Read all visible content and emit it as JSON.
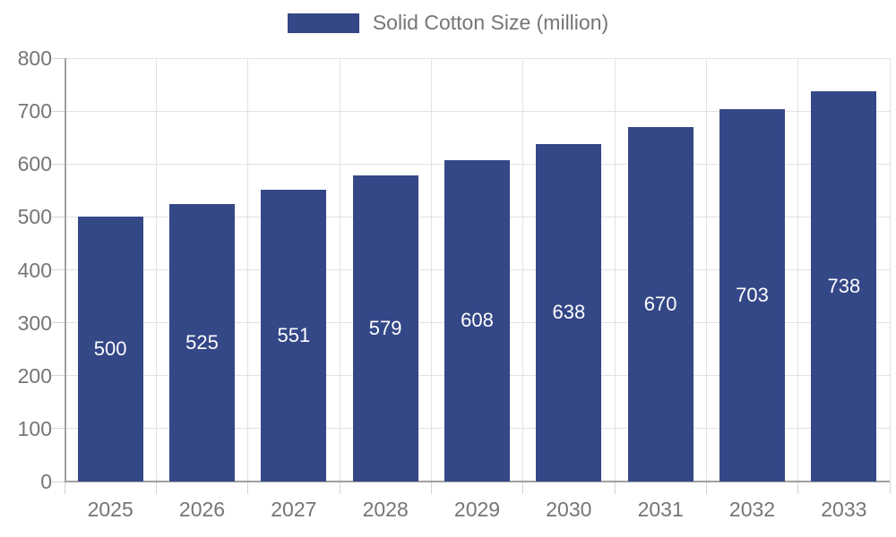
{
  "chart_data": {
    "type": "bar",
    "title": "",
    "xlabel": "",
    "ylabel": "",
    "categories": [
      "2025",
      "2026",
      "2027",
      "2028",
      "2029",
      "2030",
      "2031",
      "2032",
      "2033"
    ],
    "series": [
      {
        "name": "Solid Cotton Size (million)",
        "color": "#344787",
        "values": [
          500,
          525,
          551,
          579,
          608,
          638,
          670,
          703,
          738
        ]
      }
    ],
    "ylim": [
      0,
      800
    ],
    "ytick_step": 100,
    "grid": true,
    "legend_position": "top",
    "value_labels": {
      "show": true,
      "color": "#ffffff",
      "position": "center"
    }
  },
  "style": {
    "background": "#ffffff",
    "bar_color": "#344787",
    "grid_color": "#e2e2e2",
    "axis_line_color": "#a0a0a0",
    "tick_color": "#d4d4d4",
    "axis_text_color": "#757575",
    "legend_text_color": "#767676"
  }
}
